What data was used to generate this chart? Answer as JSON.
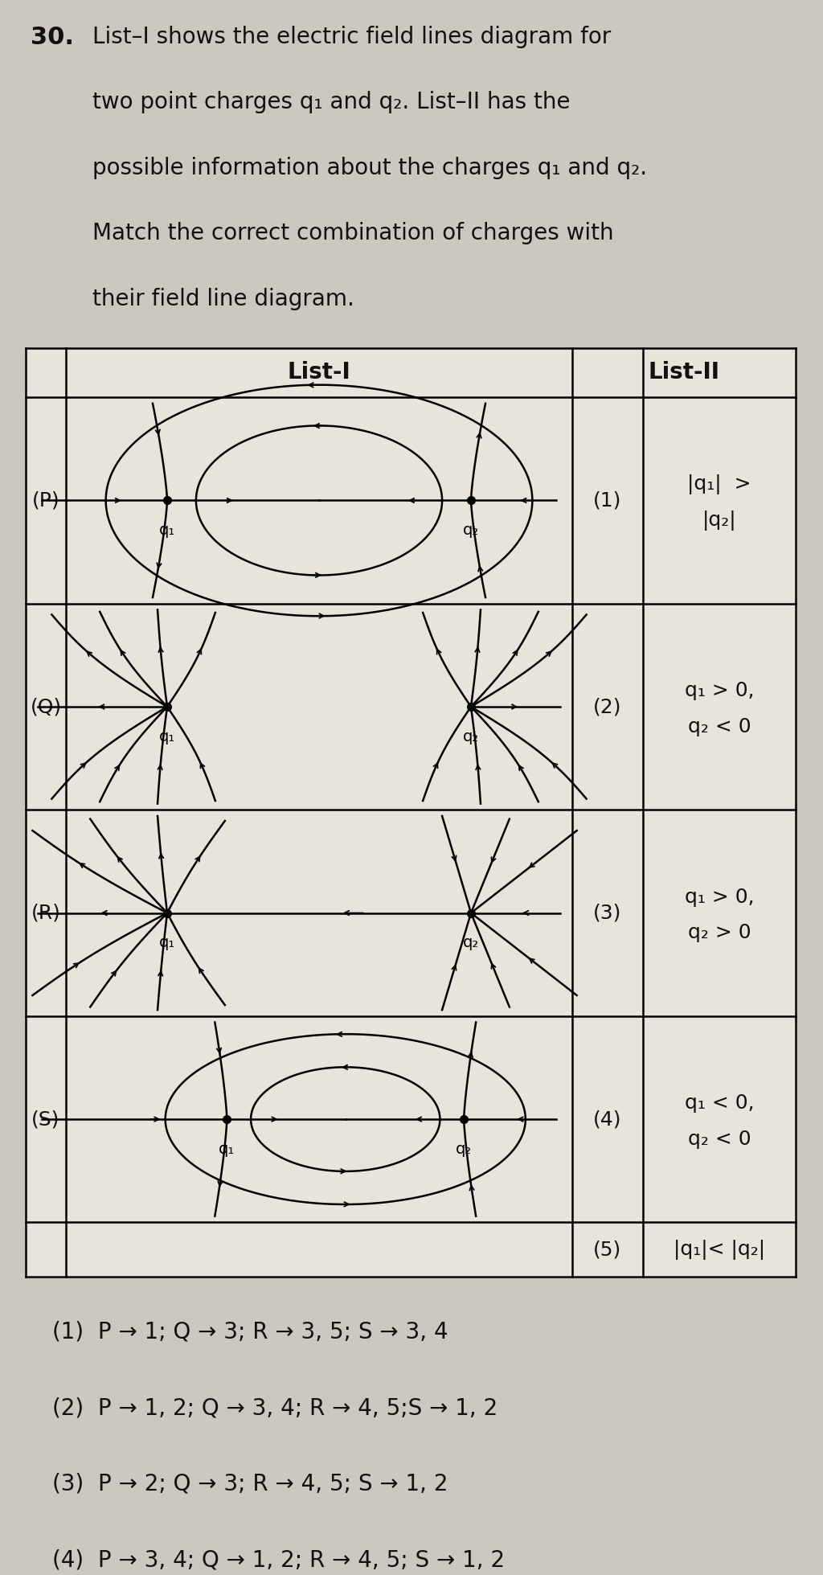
{
  "title_num": "30.",
  "lines": [
    "List–I shows the electric field lines diagram for",
    "two point charges q₁ and q₂. List–II has the",
    "possible information about the charges q₁ and q₂.",
    "Match the correct combination of charges with",
    "their field line diagram."
  ],
  "col1_header": "List-I",
  "col2_header": "List-II",
  "row_labels": [
    "(P)",
    "(Q)",
    "(R)",
    "(S)"
  ],
  "list2_rows": [
    {
      "num": "(1)",
      "line1": "|q₁|  >",
      "line2": "|q₂|"
    },
    {
      "num": "(2)",
      "line1": "q₁ > 0,",
      "line2": "q₂ < 0"
    },
    {
      "num": "(3)",
      "line1": "q₁ > 0,",
      "line2": "q₂ > 0"
    },
    {
      "num": "(4)",
      "line1": "q₁ < 0,",
      "line2": "q₂ < 0"
    }
  ],
  "row5_num": "(5)",
  "row5_text": "|q₁|< |q₂|",
  "answers": [
    "(1)  P → 1; Q → 3; R → 3, 5; S → 3, 4",
    "(2)  P → 1, 2; Q → 3, 4; R → 4, 5;S → 1, 2",
    "(3)  P → 2; Q → 3; R → 4, 5; S → 1, 2",
    "(4)  P → 3, 4; Q → 1, 2; R → 4, 5; S → 1, 2"
  ],
  "bg_color": "#ccc8c0",
  "table_bg": "#e8e4dc",
  "text_color": "#111111",
  "figsize": [
    10.24,
    19.59
  ],
  "dpi": 100
}
